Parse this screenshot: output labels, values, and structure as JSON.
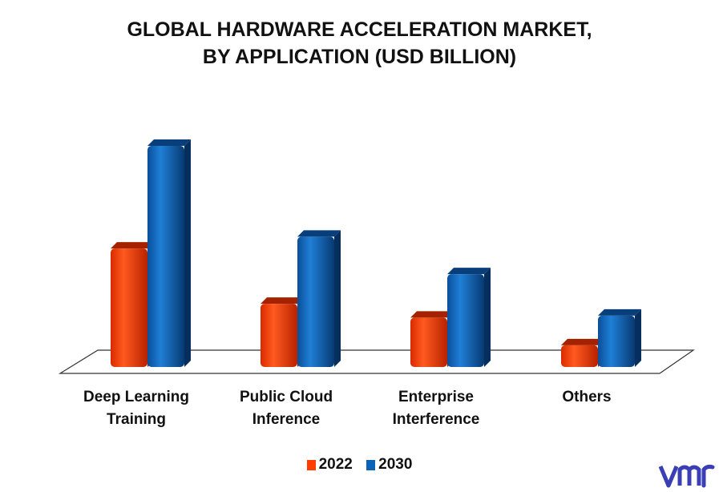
{
  "chart_data": {
    "type": "bar",
    "title_lines": [
      "GLOBAL HARDWARE ACCELERATION MARKET,",
      "BY APPLICATION (USD BILLION)"
    ],
    "categories": [
      [
        "Deep Learning",
        "Training"
      ],
      [
        "Public Cloud",
        "Inference"
      ],
      [
        "Enterprise",
        "Interference"
      ],
      [
        "Others"
      ]
    ],
    "series": [
      {
        "name": "2022",
        "values": [
          3.0,
          1.6,
          1.25,
          0.55
        ],
        "color": "#ff3d00"
      },
      {
        "name": "2030",
        "values": [
          5.6,
          3.3,
          2.35,
          1.3
        ],
        "color": "#0a63b8"
      }
    ],
    "ylim": [
      0,
      6
    ],
    "grid": false,
    "legend_position": "bottom-center"
  },
  "logo": {
    "text": "vmr",
    "color": "#3a3fb5"
  }
}
